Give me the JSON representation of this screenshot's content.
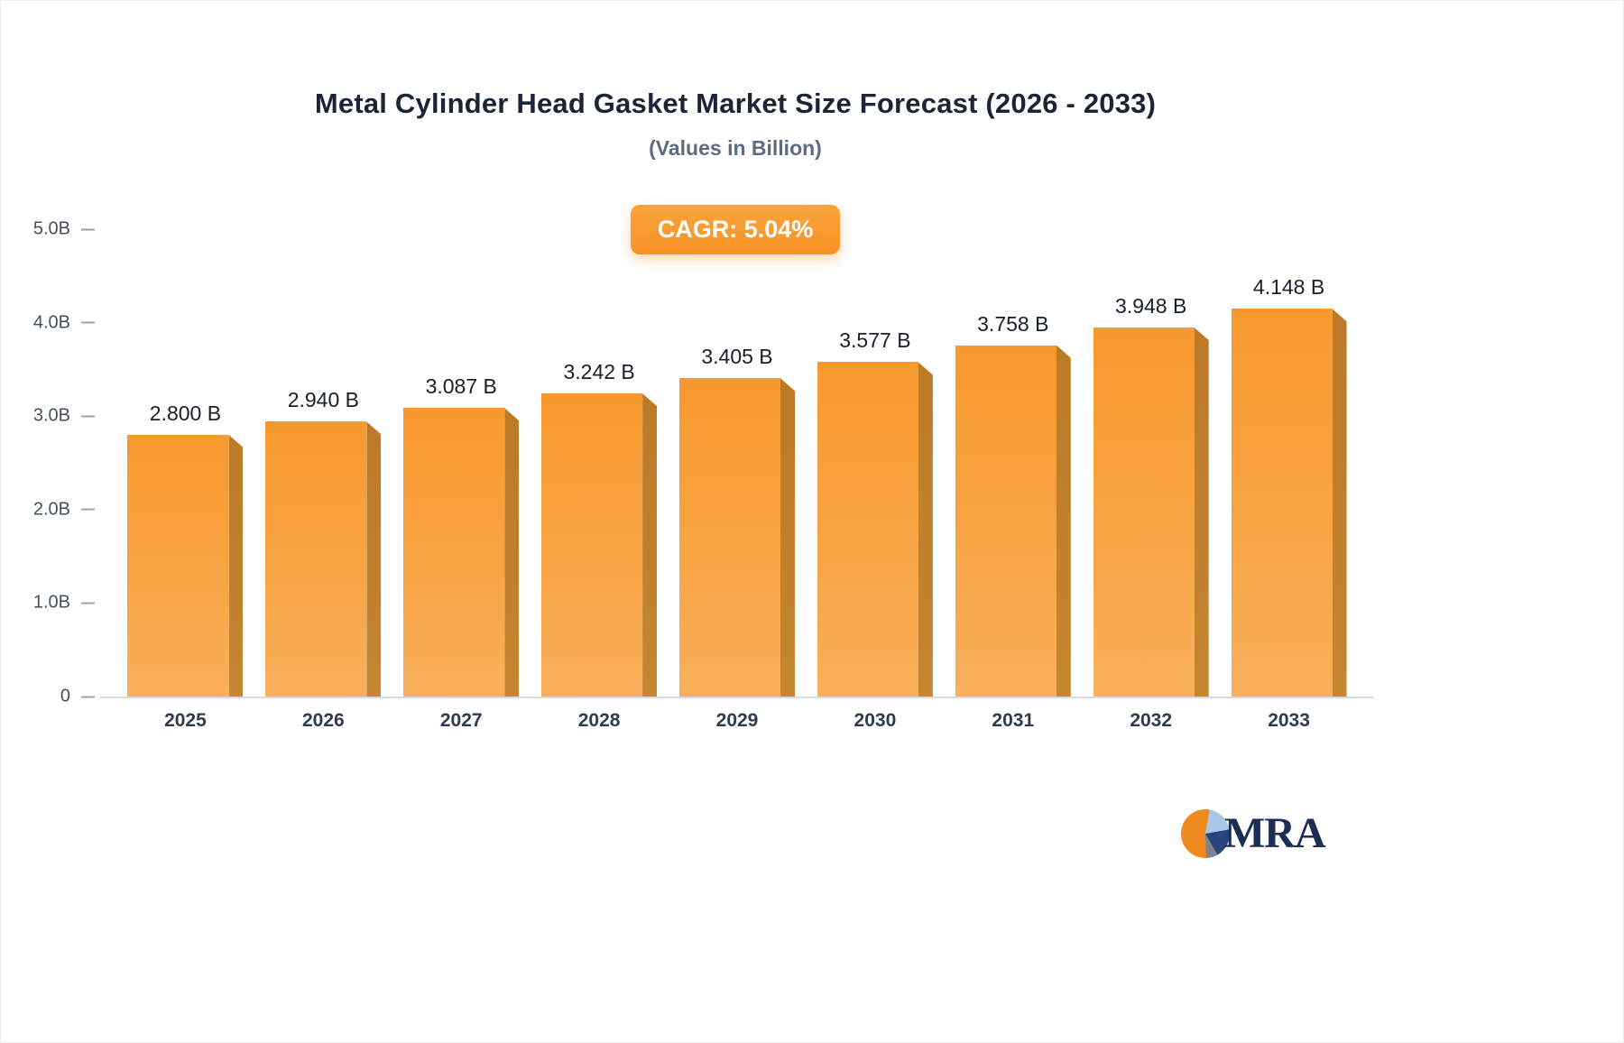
{
  "header": {
    "title": "Metal Cylinder Head Gasket Market Size Forecast (2026 - 2033)",
    "subtitle": "(Values in Billion)",
    "cagr_label": "CAGR: 5.04%"
  },
  "chart_data": {
    "type": "bar",
    "title": "Metal Cylinder Head Gasket Market Size Forecast (2026 - 2033)",
    "subtitle": "(Values in Billion)",
    "cagr": "5.04%",
    "categories": [
      "2025",
      "2026",
      "2027",
      "2028",
      "2029",
      "2030",
      "2031",
      "2032",
      "2033"
    ],
    "values": [
      2.8,
      2.94,
      3.087,
      3.242,
      3.405,
      3.577,
      3.758,
      3.948,
      4.148
    ],
    "value_labels": [
      "2.800 B",
      "2.940 B",
      "3.087 B",
      "3.242 B",
      "3.405 B",
      "3.577 B",
      "3.758 B",
      "3.948 B",
      "4.148 B"
    ],
    "xlabel": "",
    "ylabel": "",
    "ylim": [
      0,
      5.0
    ],
    "y_ticks": [
      {
        "value": 0,
        "label": "0"
      },
      {
        "value": 1.0,
        "label": "1.0B"
      },
      {
        "value": 2.0,
        "label": "2.0B"
      },
      {
        "value": 3.0,
        "label": "3.0B"
      },
      {
        "value": 4.0,
        "label": "4.0B"
      },
      {
        "value": 5.0,
        "label": "5.0B"
      }
    ],
    "grid": false,
    "legend": "none",
    "unit": "Billion",
    "colors": {
      "bar_top": "#F8992E",
      "bar_bottom": "#F9B05C",
      "bar_side": "#BC7A27",
      "badge": "#F79327",
      "title_text": "#1b2537",
      "subtitle_text": "#5b6b80",
      "axis_text": "#43505f",
      "baseline": "#d8dbe0"
    }
  },
  "logo": {
    "text": "MRA"
  }
}
